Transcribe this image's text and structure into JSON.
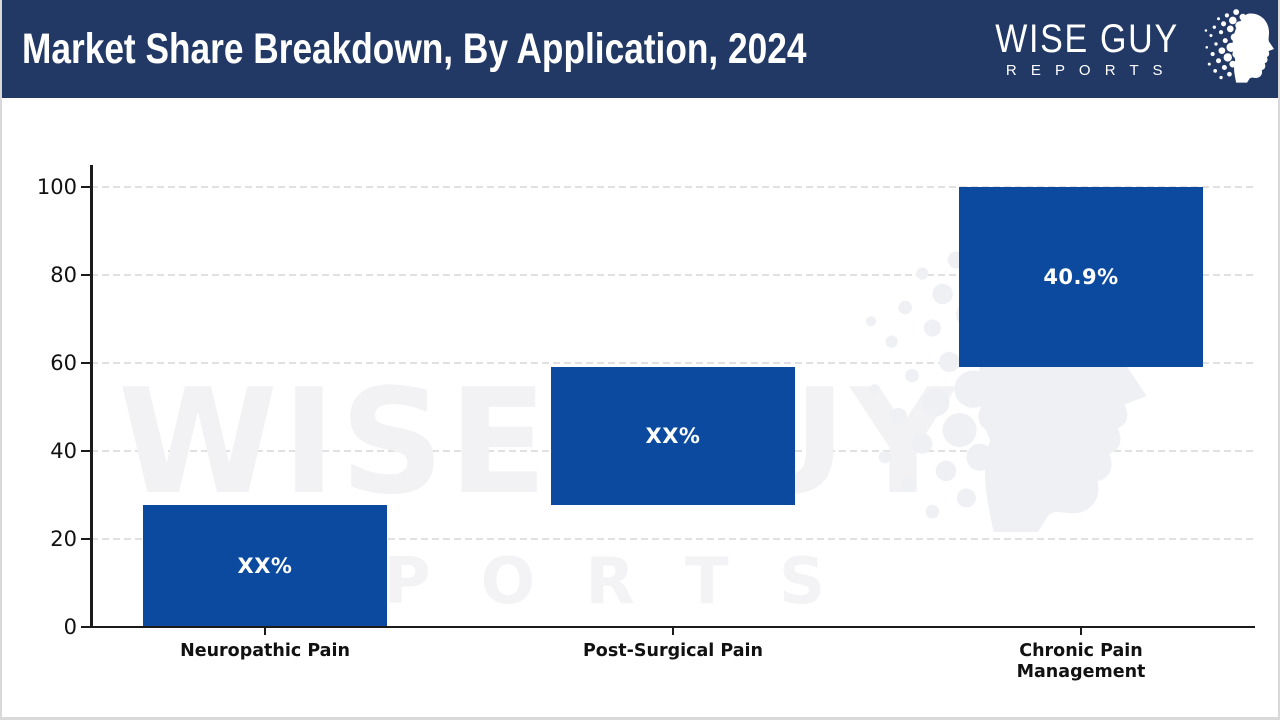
{
  "header": {
    "title": "Market Share Breakdown, By Application, 2024",
    "logo": {
      "wordmark": "WISE GUY",
      "subtitle": "R E P O R T S"
    }
  },
  "watermark": {
    "line1": "WISE GUY",
    "line2": "R E P O R T S"
  },
  "colors": {
    "header_bg": "#223966",
    "bar": "#0b4a9e",
    "grid": "#e1e1e1",
    "axis": "#1b1b1b",
    "bar_label_text": "#ffffff",
    "tick_text": "#111111",
    "watermark": "#f2f2f5",
    "frame_border": "#d9d9d9"
  },
  "chart_data": {
    "type": "bar",
    "subtype": "waterfall-segments",
    "title": "Market Share Breakdown, By Application, 2024",
    "categories": [
      "Neuropathic Pain",
      "Post-Surgical Pain",
      "Chronic Pain Management"
    ],
    "segments": [
      {
        "category": "Neuropathic Pain",
        "start": 0,
        "end": 27.7,
        "value": 27.7,
        "label": "XX%"
      },
      {
        "category": "Post-Surgical Pain",
        "start": 27.7,
        "end": 59.1,
        "value": 31.4,
        "label": "XX%"
      },
      {
        "category": "Chronic Pain Management",
        "start": 59.1,
        "end": 100,
        "value": 40.9,
        "label": "40.9%"
      }
    ],
    "yticks": [
      0,
      20,
      40,
      60,
      80,
      100
    ],
    "ylim": [
      0,
      105
    ],
    "xlabel": "",
    "ylabel": "",
    "legend": "none",
    "grid": "horizontal-dashed"
  }
}
